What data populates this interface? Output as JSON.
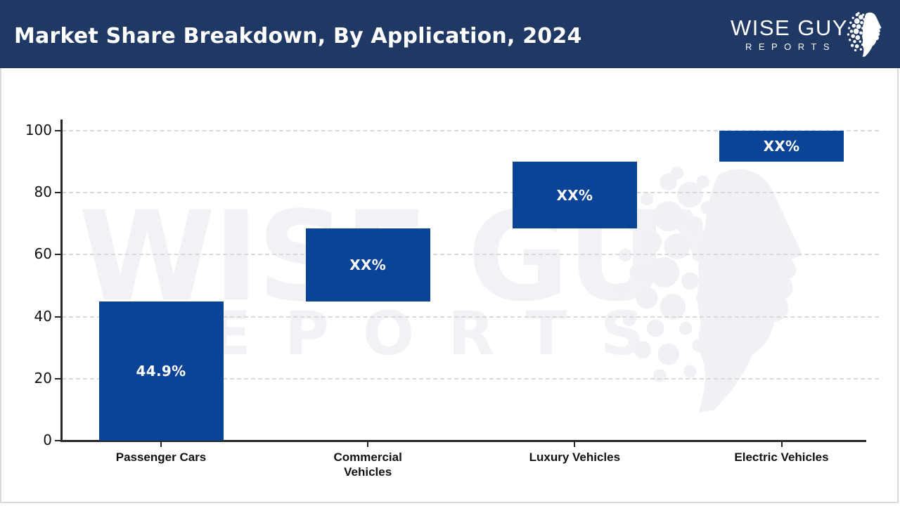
{
  "header": {
    "title": "Market Share Breakdown, By Application, 2024",
    "background": "#1F3864",
    "logo": {
      "brand_top": "WISE GUY",
      "brand_bottom": "REPORTS",
      "icon": "wiseguy-head-logo"
    }
  },
  "watermark": {
    "line1": "WISE GUY",
    "line2": "REPORTS",
    "head_icon": "wiseguy-head-watermark",
    "color": "#f1f2f5"
  },
  "chart_data": {
    "type": "bar",
    "variant": "floating-segments (waterfall-style cumulative market share)",
    "title": "Market Share Breakdown, By Application, 2024",
    "categories": [
      "Passenger Cars",
      "Commercial Vehicles",
      "Luxury Vehicles",
      "Electric Vehicles"
    ],
    "segments": [
      {
        "category": "Passenger Cars",
        "from": 0,
        "to": 44.9,
        "label": "44.9%"
      },
      {
        "category": "Commercial Vehicles",
        "from": 44.9,
        "to": 68.5,
        "label": "XX%"
      },
      {
        "category": "Luxury Vehicles",
        "from": 68.5,
        "to": 90,
        "label": "XX%"
      },
      {
        "category": "Electric Vehicles",
        "from": 90,
        "to": 100,
        "label": "XX%"
      }
    ],
    "note": "XX% labels are redacted placeholders shown in the source image",
    "xlabel": "",
    "ylabel": "",
    "ylim": [
      0,
      100
    ],
    "yticks": [
      0,
      20,
      40,
      60,
      80,
      100
    ],
    "grid": "horizontal-dashed",
    "legend": "none",
    "bar_color": "#0B4396",
    "bar_label_color": "#ffffff",
    "axis_color": "#262626",
    "grid_color": "#d9d9d9",
    "tick_label_color": "#111111"
  }
}
